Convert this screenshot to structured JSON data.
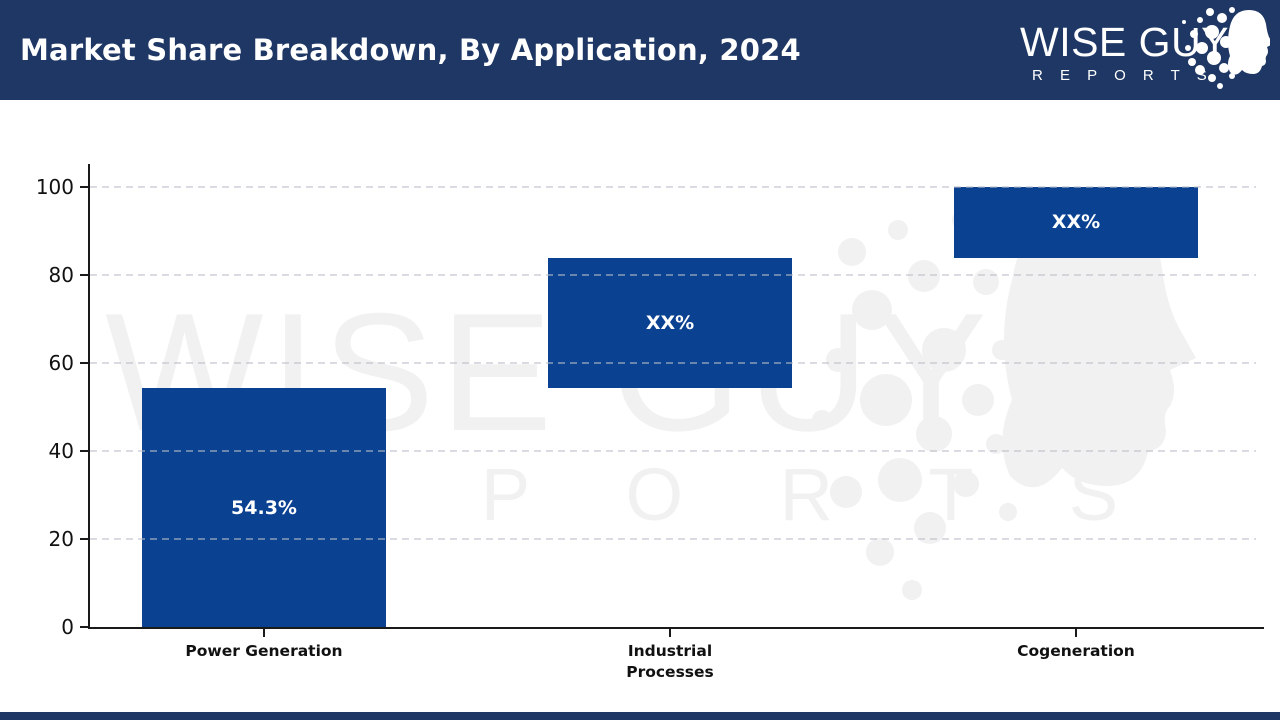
{
  "header": {
    "title": "Market Share Breakdown, By Application, 2024",
    "logo": {
      "name": "WISE GUY",
      "sub": "R E P O R T S"
    }
  },
  "watermark": {
    "name": "WISE GUY",
    "sub": "R E P O R T S"
  },
  "chart_data": {
    "type": "bar",
    "subtype": "waterfall-floating-bars",
    "title": "Market Share Breakdown, By Application, 2024",
    "categories": [
      "Power Generation",
      "Industrial\nProcesses",
      "Cogeneration"
    ],
    "segments": [
      {
        "category": "Power Generation",
        "start": 0,
        "end": 54.3,
        "label": "54.3%"
      },
      {
        "category": "Industrial Processes",
        "start": 54.3,
        "end": 83.9,
        "label": "XX%"
      },
      {
        "category": "Cogeneration",
        "start": 83.9,
        "end": 100,
        "label": "XX%"
      }
    ],
    "yticks": [
      0,
      20,
      40,
      60,
      80,
      100
    ],
    "ylim": [
      0,
      105
    ],
    "xlabel": "",
    "ylabel": "",
    "grid": "horizontal-dashed",
    "legend": "none",
    "bar_color": "#0b4191",
    "value_label_color": "#ffffff"
  },
  "colors": {
    "header_bg": "#1e3765",
    "bar": "#0b4191",
    "axis": "#1a1a1a",
    "grid": "#d9d9d9",
    "watermark": "#f1f1f1",
    "title_text": "#ffffff"
  }
}
